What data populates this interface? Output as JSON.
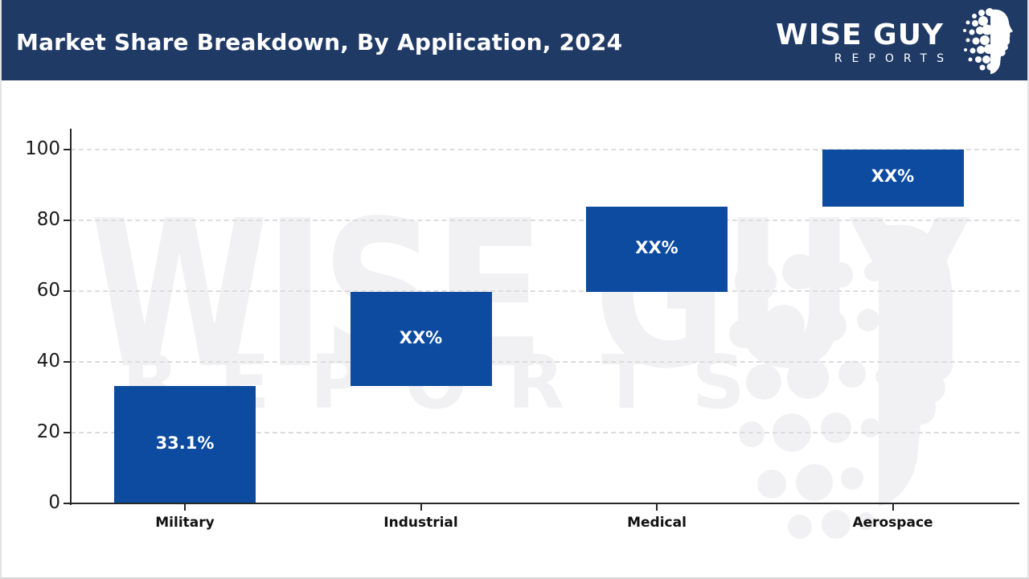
{
  "header": {
    "title": "Market Share Breakdown, By Application, 2024",
    "logo": {
      "wordmark": "WISE GUY",
      "sub": "REPORTS"
    }
  },
  "watermark": {
    "wordmark": "WISE GUY",
    "sub": "REPORTS"
  },
  "colors": {
    "header_bg": "#203A66",
    "bar": "#0C4BA0",
    "bar_label": "#FFFFFF",
    "axis": "#262626",
    "grid": "#DCDCDC",
    "tick_text": "#1A1A1A",
    "watermark": "#F1F1F3"
  },
  "chart_data": {
    "type": "bar",
    "subtype": "waterfall",
    "title": "Market Share Breakdown, By Application, 2024",
    "categories": [
      "Military",
      "Industrial",
      "Medical",
      "Aerospace"
    ],
    "series": [
      {
        "name": "Market share (%)",
        "segments": [
          {
            "category": "Military",
            "start": 0,
            "end": 33.1,
            "label": "33.1%"
          },
          {
            "category": "Industrial",
            "start": 33.1,
            "end": 59.6,
            "label": "XX%"
          },
          {
            "category": "Medical",
            "start": 59.6,
            "end": 83.8,
            "label": "XX%"
          },
          {
            "category": "Aerospace",
            "start": 83.8,
            "end": 100,
            "label": "XX%"
          }
        ]
      }
    ],
    "xlabel": "",
    "ylabel": "",
    "ylim": [
      0,
      105
    ],
    "yticks": [
      0,
      20,
      40,
      60,
      80,
      100
    ],
    "grid": "horizontal-dashed",
    "legend": "none"
  }
}
